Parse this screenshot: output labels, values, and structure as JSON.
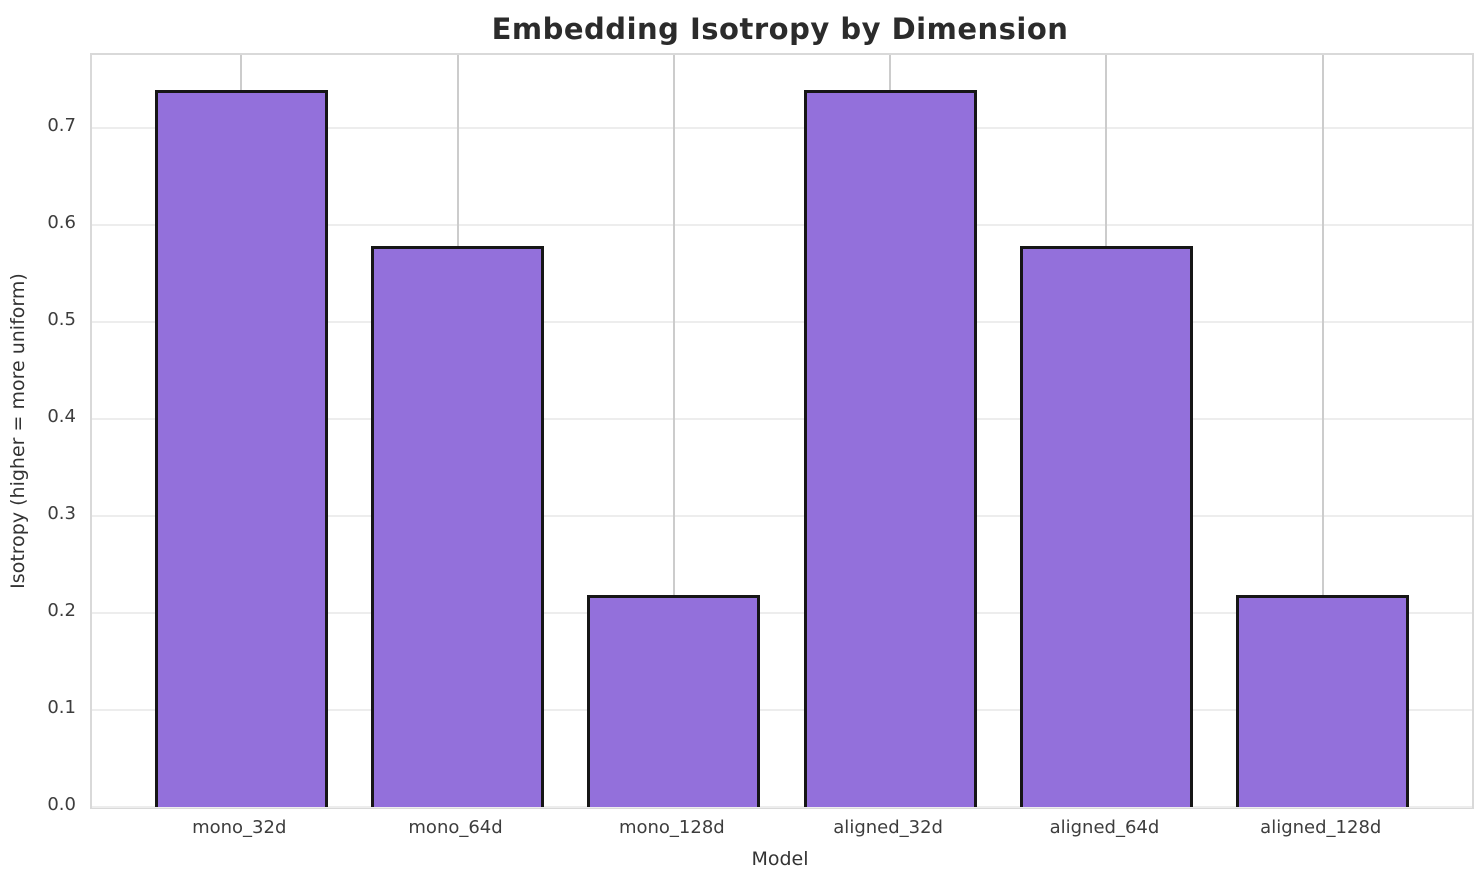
{
  "chart_data": {
    "type": "bar",
    "title": "Embedding Isotropy by Dimension",
    "xlabel": "Model",
    "ylabel": "Isotropy (higher = more uniform)",
    "categories": [
      "mono_32d",
      "mono_64d",
      "mono_128d",
      "aligned_32d",
      "aligned_64d",
      "aligned_128d"
    ],
    "values": [
      0.739,
      0.578,
      0.218,
      0.739,
      0.578,
      0.218
    ],
    "ylim": [
      0,
      0.775
    ],
    "yticks": [
      "0.0",
      "0.1",
      "0.2",
      "0.3",
      "0.4",
      "0.5",
      "0.6",
      "0.7"
    ],
    "grid": true,
    "legend_position": "none",
    "bar_color": "#9370DB",
    "bar_edge_color": "#161616",
    "hgrid_color": "#ededed",
    "vgrid_color": "#cccccc",
    "title_color": "#2b2b2b",
    "tick_color": "#3d3d3d"
  }
}
